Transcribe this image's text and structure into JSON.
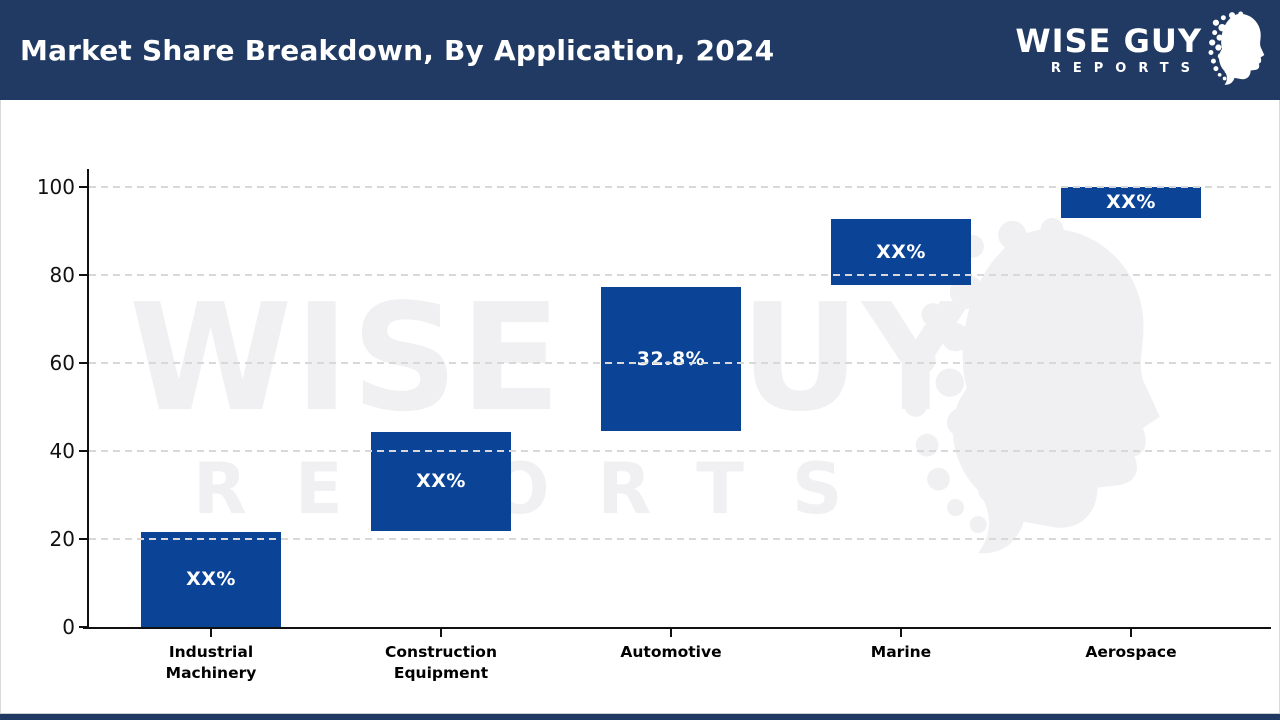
{
  "header": {
    "title": "Market Share Breakdown, By Application, 2024",
    "brand": {
      "name": "WISE GUY",
      "tagline": "REPORTS"
    }
  },
  "watermark": {
    "line1": "WISE GUY",
    "line2": "REPORTS"
  },
  "colors": {
    "header_bg": "#213A63",
    "bar_fill": "#0B4397",
    "gridline": "#D8D8D8",
    "watermark": "#F0F0F2",
    "axis": "#111111",
    "bar_label_text": "#FFFFFF"
  },
  "chart_data": {
    "type": "bar",
    "variant": "floating stacked segments (waterfall-style market share columns)",
    "title": "Market Share Breakdown, By Application, 2024",
    "categories": [
      {
        "line1": "Industrial",
        "line2": "Machinery",
        "full": "Industrial Machinery"
      },
      {
        "line1": "Construction",
        "line2": "Equipment",
        "full": "Construction Equipment"
      },
      {
        "line1": "Automotive",
        "line2": "",
        "full": "Automotive"
      },
      {
        "line1": "Marine",
        "line2": "",
        "full": "Marine"
      },
      {
        "line1": "Aerospace",
        "line2": "",
        "full": "Aerospace"
      }
    ],
    "segments": [
      {
        "category": "Industrial Machinery",
        "start": 0,
        "end": 21.6,
        "label": "XX%"
      },
      {
        "category": "Construction Equipment",
        "start": 21.9,
        "end": 44.3,
        "label": "XX%"
      },
      {
        "category": "Automotive",
        "start": 44.4,
        "end": 77.2,
        "label": "32.8%",
        "value": 32.8
      },
      {
        "category": "Marine",
        "start": 77.6,
        "end": 92.6,
        "label": "XX%"
      },
      {
        "category": "Aerospace",
        "start": 92.8,
        "end": 100,
        "label": "XX%"
      }
    ],
    "ytick_values": [
      0,
      20,
      40,
      60,
      80,
      100
    ],
    "ytick_labels": [
      "0",
      "20",
      "40",
      "60",
      "80",
      "100"
    ],
    "ylim": [
      0,
      104
    ],
    "xlabel": "",
    "ylabel": "",
    "grid": "horizontal dashed",
    "legend": "none",
    "bar_labels_inside": true
  }
}
